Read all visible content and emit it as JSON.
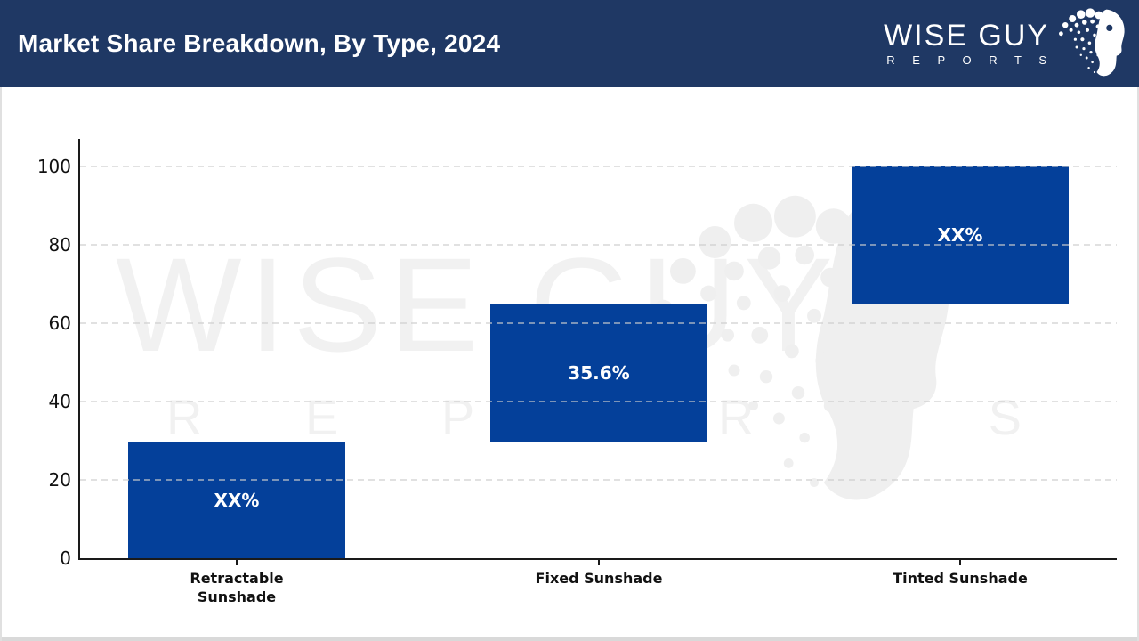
{
  "header": {
    "title": "Market Share Breakdown, By Type, 2024",
    "bg_color": "#1f3864",
    "logo": {
      "word": "WISE GUY",
      "sub": "R E P O R T S"
    }
  },
  "watermark": {
    "word": "WISE GUY",
    "sub": "R E P O R T S"
  },
  "chart_data": {
    "type": "bar",
    "subtype": "waterfall",
    "title": "Market Share Breakdown, By Type, 2024",
    "categories": [
      "Retractable Sunshade",
      "Fixed Sunshade",
      "Tinted Sunshade"
    ],
    "segments": [
      {
        "category": "Retractable Sunshade",
        "start": 0,
        "end": 29.5,
        "label": "XX%"
      },
      {
        "category": "Fixed Sunshade",
        "start": 29.5,
        "end": 65.1,
        "label": "35.6%"
      },
      {
        "category": "Tinted Sunshade",
        "start": 65.1,
        "end": 100,
        "label": "XX%"
      }
    ],
    "yticks": [
      0,
      20,
      40,
      60,
      80,
      100
    ],
    "ylim": [
      0,
      100
    ],
    "grid": "horizontal dashed",
    "legend": "none",
    "bar_color": "#04409a",
    "bar_label_color": "#ffffff",
    "axis_color": "#1a1a1a",
    "gridline_color": "#d4d4d4"
  }
}
